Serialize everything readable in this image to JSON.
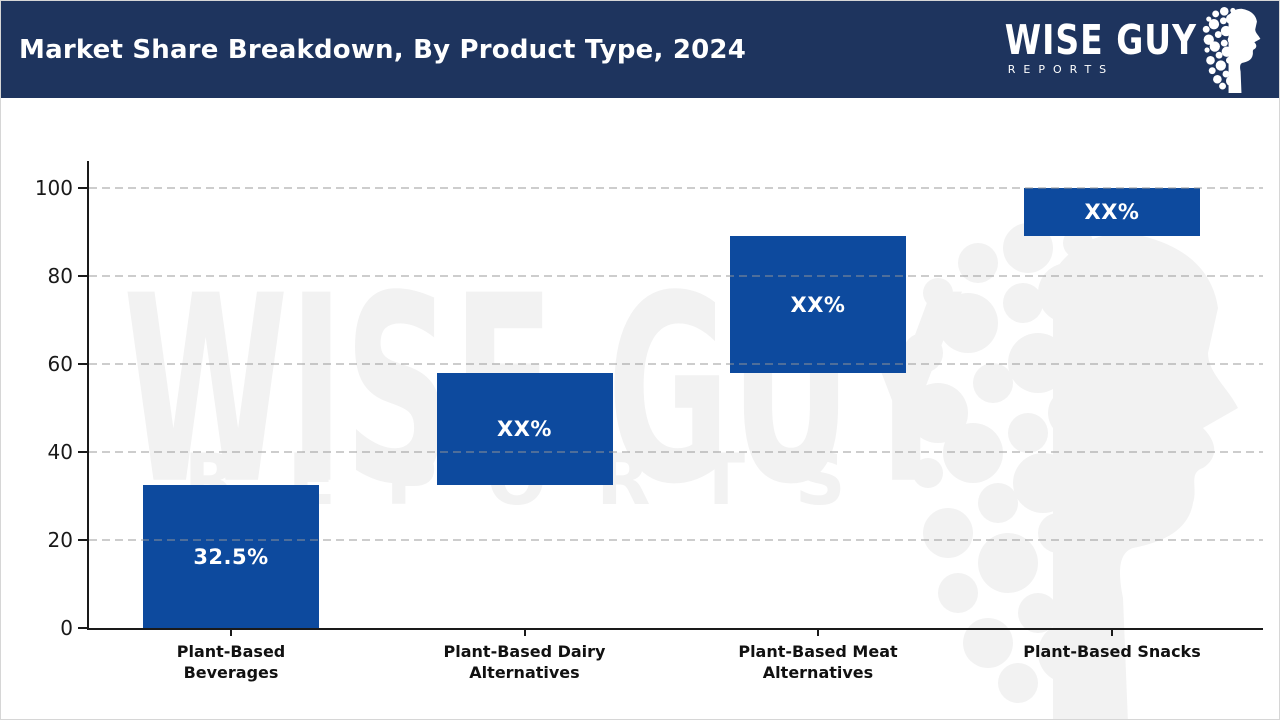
{
  "header": {
    "title": "Market Share Breakdown, By Product Type, 2024",
    "logo": {
      "name": "WISE GUY",
      "sub": "REPORTS"
    }
  },
  "watermark": {
    "line1": "WISE GUY",
    "line2": "REPORTS"
  },
  "chart_data": {
    "type": "bar",
    "subtype": "floating-waterfall",
    "title": "Market Share Breakdown, By Product Type, 2024",
    "categories": [
      "Plant-Based\nBeverages",
      "Plant-Based Dairy\nAlternatives",
      "Plant-Based Meat\nAlternatives",
      "Plant-Based Snacks"
    ],
    "bars": [
      {
        "category": "Plant-Based Beverages",
        "label": "32.5%",
        "start": 0,
        "end": 32.5
      },
      {
        "category": "Plant-Based Dairy Alternatives",
        "label": "XX%",
        "start": 32.5,
        "end": 58
      },
      {
        "category": "Plant-Based Meat Alternatives",
        "label": "XX%",
        "start": 58,
        "end": 89
      },
      {
        "category": "Plant-Based Snacks",
        "label": "XX%",
        "start": 89,
        "end": 100
      }
    ],
    "xlabel": "",
    "ylabel": "",
    "ylim": [
      0,
      100
    ],
    "yticks": [
      0,
      20,
      40,
      60,
      80,
      100
    ],
    "grid": "horizontal-dashed",
    "legend": "none",
    "colors": {
      "bar": "#0d4a9e",
      "bar_label": "#ffffff",
      "axis": "#1a1a1a",
      "header_bg": "#1e345e",
      "header_text": "#ffffff",
      "watermark": "#f2f2f2"
    }
  }
}
